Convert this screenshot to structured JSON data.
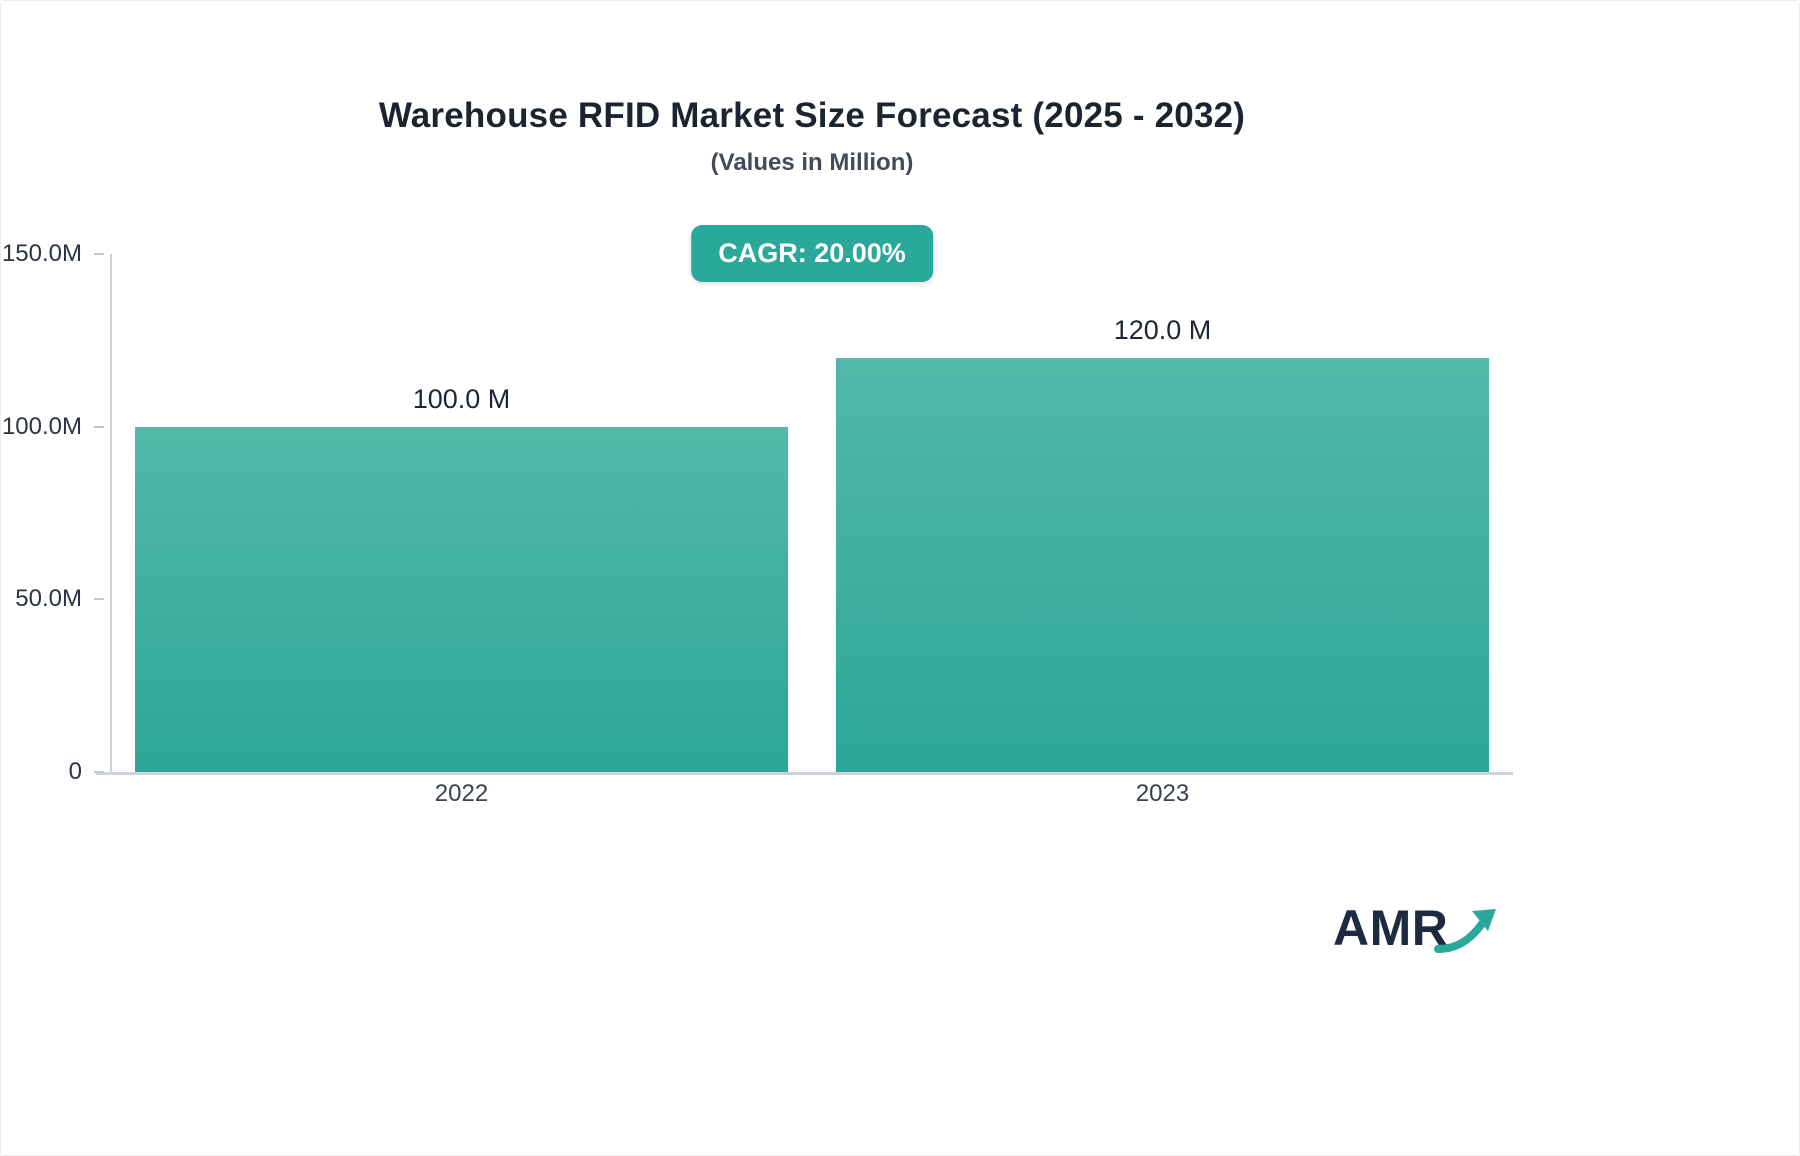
{
  "chart": {
    "title": "Warehouse RFID Market Size Forecast (2025 - 2032)",
    "subtitle": "(Values in Million)",
    "cagr_badge": "CAGR: 20.00%"
  },
  "chart_data": {
    "type": "bar",
    "categories": [
      "2022",
      "2023"
    ],
    "values": [
      100.0,
      120.0
    ],
    "value_labels": [
      "100.0 M",
      "120.0 M"
    ],
    "title": "Warehouse RFID Market Size Forecast (2025 - 2032)",
    "subtitle": "(Values in Million)",
    "annotation": "CAGR: 20.00%",
    "xlabel": "",
    "ylabel": "",
    "ylim": [
      0,
      150
    ],
    "yticks": [
      0,
      50,
      100,
      150
    ],
    "ytick_labels": [
      "0",
      "50.0M",
      "100.0M",
      "150.0M"
    ],
    "grid": false,
    "legend": false,
    "bar_color_top": "#53b9a9",
    "bar_color_bottom": "#2ba697"
  },
  "colors": {
    "accent_teal": "#2aa99a",
    "axis_gray": "#cdd2d8",
    "title_dark": "#1c2430",
    "logo_navy": "#1c2b40"
  },
  "logo": {
    "text": "AMR"
  }
}
